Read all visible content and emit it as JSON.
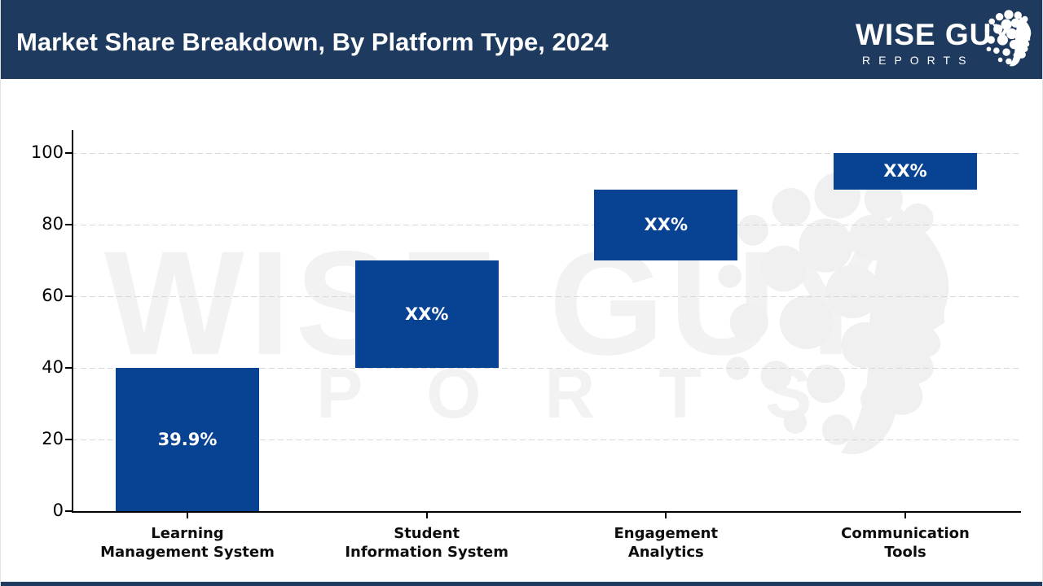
{
  "header": {
    "title": "Market Share Breakdown, By Platform Type, 2024",
    "bg_color": "#1f3a5f",
    "logo": {
      "name": "WISE GUY",
      "tagline": "REPORTS"
    }
  },
  "watermark": {
    "line1": "WISE GUY",
    "line2": "PORTS"
  },
  "chart_data": {
    "type": "bar",
    "subtype": "waterfall-style floating segments",
    "title": "Market Share Breakdown, By Platform Type, 2024",
    "categories": [
      "Learning Management System",
      "Student Information System",
      "Engagement Analytics",
      "Communication Tools"
    ],
    "categories_display": [
      [
        "Learning",
        "Management System"
      ],
      [
        "Student",
        "Information System"
      ],
      [
        "Engagement",
        "Analytics"
      ],
      [
        "Communication",
        "Tools"
      ]
    ],
    "segments": [
      {
        "category": "Learning Management System",
        "start": 0,
        "end": 40,
        "label": "39.9%"
      },
      {
        "category": "Student Information System",
        "start": 40,
        "end": 70,
        "label": "XX%"
      },
      {
        "category": "Engagement Analytics",
        "start": 70,
        "end": 89.8,
        "label": "XX%"
      },
      {
        "category": "Communication Tools",
        "start": 89.8,
        "end": 100,
        "label": "XX%"
      }
    ],
    "yticks": [
      0,
      20,
      40,
      60,
      80,
      100
    ],
    "ylim": [
      0,
      106
    ],
    "xlabel": "",
    "ylabel": "",
    "grid": "horizontal dashed",
    "legend": "none",
    "bar_color": "#084292",
    "value_label_color": "#ffffff",
    "axis_color": "#000000",
    "gridline_color": "#d8d8d8"
  }
}
